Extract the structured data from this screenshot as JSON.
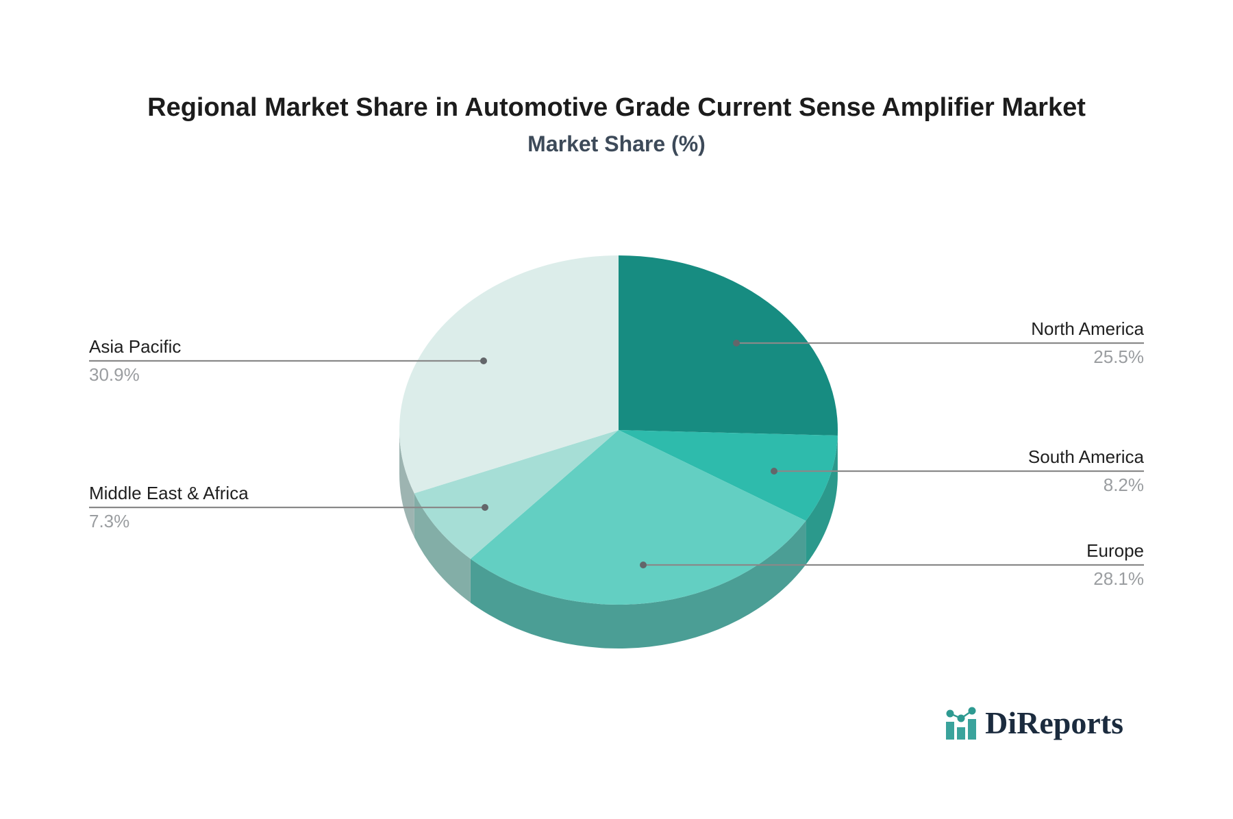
{
  "chart_data": {
    "type": "pie",
    "style": "3d",
    "title": "Regional Market Share in Automotive Grade Current Sense Amplifier Market",
    "subtitle": "Market Share (%)",
    "unit": "%",
    "start_angle": "12-oclock-clockwise",
    "legend_position": "leader-line-labels",
    "slices": [
      {
        "label": "North America",
        "value": 25.5,
        "pct_label": "25.5%",
        "color": "#178c81",
        "side_color": "#13766d",
        "label_side": "right"
      },
      {
        "label": "South America",
        "value": 8.2,
        "pct_label": "8.2%",
        "color": "#2ebbac",
        "side_color": "#2b998c",
        "label_side": "right"
      },
      {
        "label": "Europe",
        "value": 28.1,
        "pct_label": "28.1%",
        "color": "#63cfc2",
        "side_color": "#4b9e95",
        "label_side": "right"
      },
      {
        "label": "Middle East & Africa",
        "value": 7.3,
        "pct_label": "7.3%",
        "color": "#a6ded6",
        "side_color": "#83aea7",
        "label_side": "left"
      },
      {
        "label": "Asia Pacific",
        "value": 30.9,
        "pct_label": "30.9%",
        "color": "#dcedea",
        "side_color": "#9db4b1",
        "label_side": "left"
      }
    ],
    "leader_line_color": "#898989",
    "leader_dot_color": "#63666a"
  },
  "branding": {
    "logo_text": "DiReports",
    "logo_accent_color": "#3aa39c",
    "logo_text_color": "#1b2b3e"
  }
}
